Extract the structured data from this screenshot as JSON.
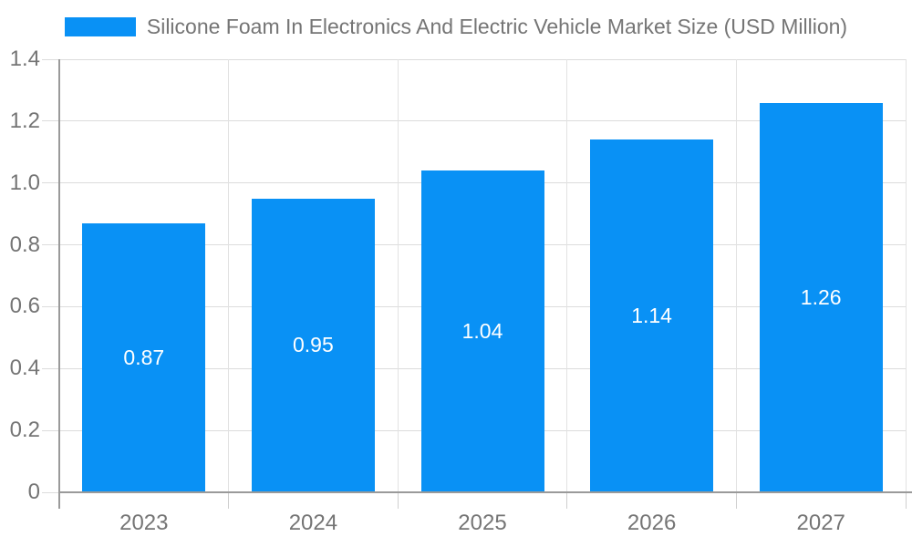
{
  "chart_data": {
    "type": "bar",
    "title": "Silicone Foam In Electronics And Electric Vehicle Market Size (USD Million)",
    "categories": [
      "2023",
      "2024",
      "2025",
      "2026",
      "2027"
    ],
    "values": [
      0.87,
      0.95,
      1.04,
      1.14,
      1.26
    ],
    "value_labels": [
      "0.87",
      "0.95",
      "1.04",
      "1.14",
      "1.26"
    ],
    "xlabel": "",
    "ylabel": "",
    "ylim": [
      0,
      1.4
    ],
    "yticks": [
      "0",
      "0.2",
      "0.4",
      "0.6",
      "0.8",
      "1.0",
      "1.2",
      "1.4"
    ],
    "grid": true,
    "legend_position": "top",
    "bar_color": "#0991F5",
    "bar_value_label_color": "#ffffff",
    "axis_line_color": "#9a9a9a",
    "gridline_color": "#e2e2e2",
    "tick_label_color": "#757575",
    "title_color": "#757575",
    "background_color": "#ffffff"
  }
}
